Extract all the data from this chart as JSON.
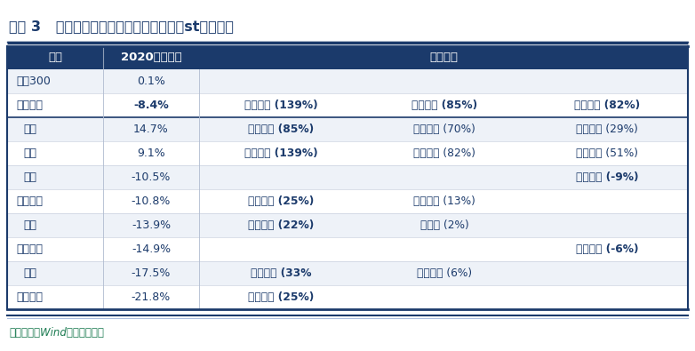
{
  "title": "图表 3   交运各子行业涨幅居前公司（剔除st公司）。",
  "source": "资料来源：Wind、华创证券。",
  "header_bg": "#1B3A6B",
  "header_fg": "#ffffff",
  "border_color": "#1B3A6B",
  "title_color": "#1B3A6B",
  "source_color": "#1a7a50",
  "sep_line_color": "#1B3A6B",
  "rows": [
    {
      "industry": "沪深300",
      "change": "0.1%",
      "bold_row": false,
      "separator_below": false,
      "cols": [
        "",
        "",
        ""
      ]
    },
    {
      "industry": "交通运输",
      "change": "-8.4%",
      "bold_row": true,
      "separator_below": true,
      "cols": [
        "密尔克卫 (139%)",
        "强生控股 (85%)",
        "恒通股份 (82%)"
      ],
      "cols_bold": [
        true,
        true,
        true
      ]
    },
    {
      "industry": "公交",
      "change": "14.7%",
      "bold_row": false,
      "separator_below": false,
      "cols": [
        "强生控股 (85%)",
        "申通地铁 (70%)",
        "海汽集团 (29%)"
      ],
      "cols_bold": [
        true,
        false,
        false
      ]
    },
    {
      "industry": "物流",
      "change": "9.1%",
      "bold_row": false,
      "separator_below": false,
      "cols": [
        "密尔克卫 (139%)",
        "恒通股份 (82%)",
        "顺丰控股 (51%)"
      ],
      "cols_bold": [
        true,
        false,
        false
      ]
    },
    {
      "industry": "机场",
      "change": "-10.5%",
      "bold_row": false,
      "separator_below": false,
      "cols": [
        "",
        "",
        "上海机场 (-9%)"
      ],
      "cols_bold": [
        false,
        false,
        true
      ]
    },
    {
      "industry": "高速公路",
      "change": "-10.8%",
      "bold_row": false,
      "separator_below": false,
      "cols": [
        "山东高速 (25%)",
        "海南高速 (13%)",
        ""
      ],
      "cols_bold": [
        true,
        false,
        false
      ]
    },
    {
      "industry": "港口",
      "change": "-13.9%",
      "bold_row": false,
      "separator_below": false,
      "cols": [
        "北部湾港 (22%)",
        "盐田港 (2%)",
        ""
      ],
      "cols_bold": [
        true,
        false,
        false
      ]
    },
    {
      "industry": "铁路运输",
      "change": "-14.9%",
      "bold_row": false,
      "separator_below": false,
      "cols": [
        "",
        "",
        "京沪高铁 (-6%)"
      ],
      "cols_bold": [
        false,
        false,
        true
      ]
    },
    {
      "industry": "航运",
      "change": "-17.5%",
      "bold_row": false,
      "separator_below": false,
      "cols": [
        "海峡股份 (33%",
        "中远海能 (6%)",
        ""
      ],
      "cols_bold": [
        true,
        false,
        false
      ]
    },
    {
      "industry": "航空运输",
      "change": "-21.8%",
      "bold_row": false,
      "separator_below": false,
      "cols": [
        "华夏航空 (25%)",
        "",
        ""
      ],
      "cols_bold": [
        true,
        false,
        false
      ]
    }
  ]
}
